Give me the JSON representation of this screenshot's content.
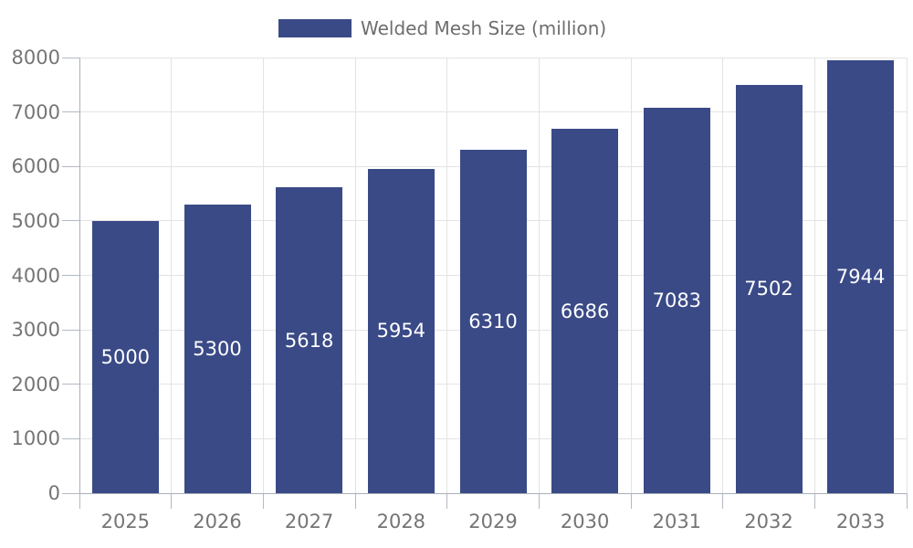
{
  "legend": {
    "label": "Welded Mesh Size (million)"
  },
  "chart_data": {
    "type": "bar",
    "categories": [
      "2025",
      "2026",
      "2027",
      "2028",
      "2029",
      "2030",
      "2031",
      "2032",
      "2033"
    ],
    "series": [
      {
        "name": "Welded Mesh Size (million)",
        "values": [
          5000,
          5300,
          5618,
          5954,
          6310,
          6686,
          7083,
          7502,
          7944
        ]
      }
    ],
    "bar_labels": [
      "5000",
      "5300",
      "5618",
      "5954",
      "6310",
      "6686",
      "7083",
      "7502",
      "7944"
    ],
    "xlabel": "",
    "ylabel": "",
    "ylim": [
      0,
      8000
    ],
    "ytick_step": 1000,
    "ytick_labels": [
      "0",
      "1000",
      "2000",
      "3000",
      "4000",
      "5000",
      "6000",
      "7000",
      "8000"
    ],
    "grid": true,
    "legend_position": "top-center",
    "bar_labels_inside": true
  },
  "colors": {
    "bar": "#3A4A87",
    "bar_label_text": "#FFFFFF",
    "axis_text": "#757575",
    "legend_text": "#6E6E6E",
    "grid_line": "#E3E3E3",
    "axis_line": "#A9AFB9",
    "tick_line": "#B3B9C3",
    "background": "#FFFFFF"
  }
}
